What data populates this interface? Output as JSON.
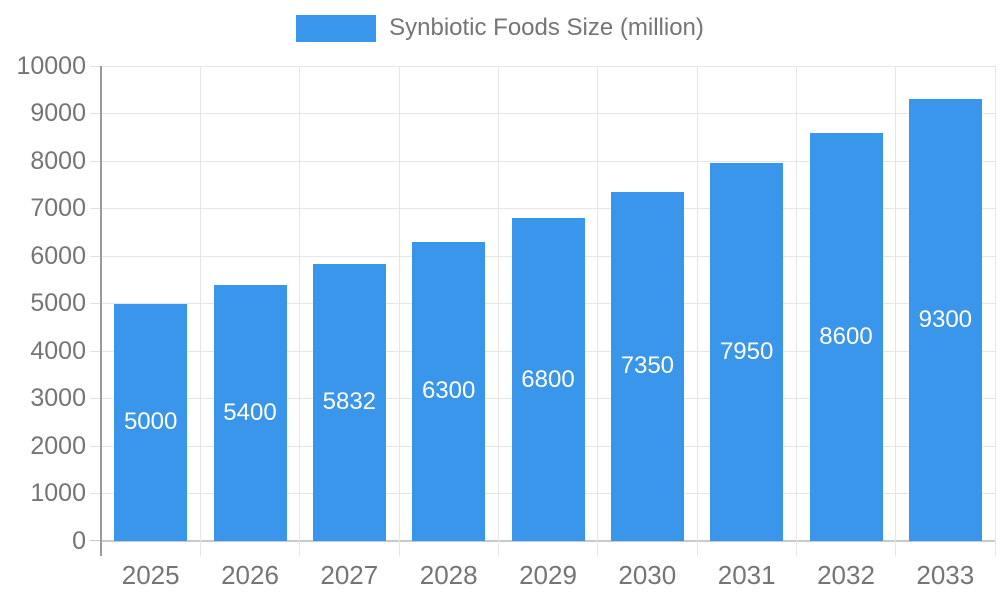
{
  "legend": {
    "label": "Synbiotic Foods Size (million)"
  },
  "chart_data": {
    "type": "bar",
    "title": "Synbiotic Foods Size (million)",
    "categories": [
      "2025",
      "2026",
      "2027",
      "2028",
      "2029",
      "2030",
      "2031",
      "2032",
      "2033"
    ],
    "values": [
      5000,
      5400,
      5832,
      6300,
      6800,
      7350,
      7950,
      8600,
      9300
    ],
    "value_labels": [
      "5000",
      "5400",
      "5832",
      "6300",
      "6800",
      "7350",
      "7950",
      "8600",
      "9300"
    ],
    "xlabel": "",
    "ylabel": "",
    "ylim": [
      0,
      10000
    ],
    "ytick_step": 1000,
    "grid": true,
    "legend_position": "top-center",
    "colors": {
      "bar": "#3A96EB",
      "bar_value_text": "#ffffff",
      "axis_text": "#757575",
      "gridline": "#e6e6e6",
      "y_axis_line": "#9a9a9a",
      "x_axis_line": "#c9c9c9"
    }
  }
}
